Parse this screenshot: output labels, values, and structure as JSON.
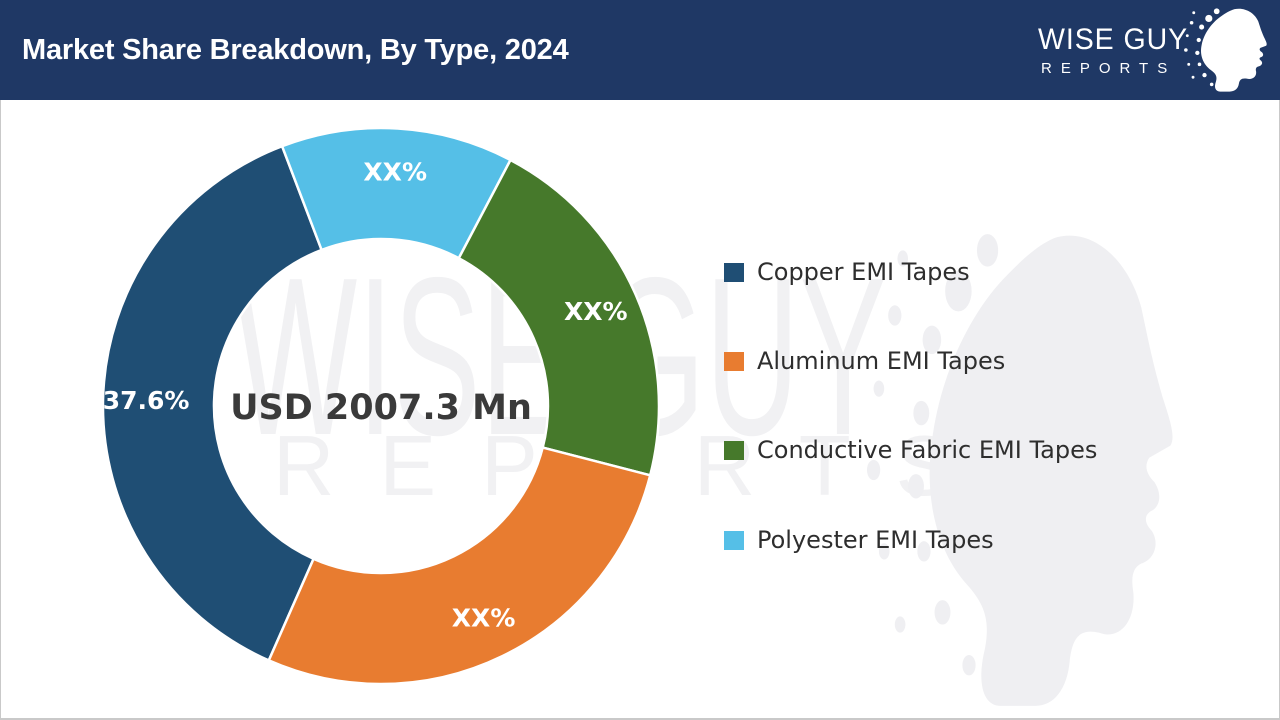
{
  "header": {
    "title": "Market Share Breakdown, By Type, 2024",
    "bg_color": "#1F3865",
    "logo": {
      "line1": "WISE GUY",
      "line2": "REPORTS"
    }
  },
  "watermark": {
    "line1": "WISE GUY",
    "line2": "REPORTS"
  },
  "chart_data": {
    "type": "donut",
    "title": "Market Share Breakdown, By Type, 2024",
    "center_label": "USD 2007.3 Mn",
    "start_angle_deg": 203.8,
    "direction": "clockwise",
    "inner_radius_ratio": 0.6,
    "slices": [
      {
        "name": "Copper EMI Tapes",
        "value_pct": 37.6,
        "display_label": "37.6%",
        "color": "#1F4E74"
      },
      {
        "name": "Polyester EMI Tapes",
        "value_pct": 13.5,
        "display_label": "XX%",
        "color": "#55BFE7"
      },
      {
        "name": "Conductive Fabric EMI Tapes",
        "value_pct": 21.3,
        "display_label": "XX%",
        "color": "#46792B"
      },
      {
        "name": "Aluminum EMI Tapes",
        "value_pct": 27.6,
        "display_label": "XX%",
        "color": "#E87C30"
      }
    ],
    "legend_position": "right"
  },
  "legend": {
    "items": [
      {
        "label": "Copper EMI Tapes",
        "color": "#1F4E74"
      },
      {
        "label": "Aluminum EMI Tapes",
        "color": "#E87C30"
      },
      {
        "label": "Conductive Fabric EMI Tapes",
        "color": "#46792B"
      },
      {
        "label": "Polyester EMI Tapes",
        "color": "#55BFE7"
      }
    ]
  }
}
